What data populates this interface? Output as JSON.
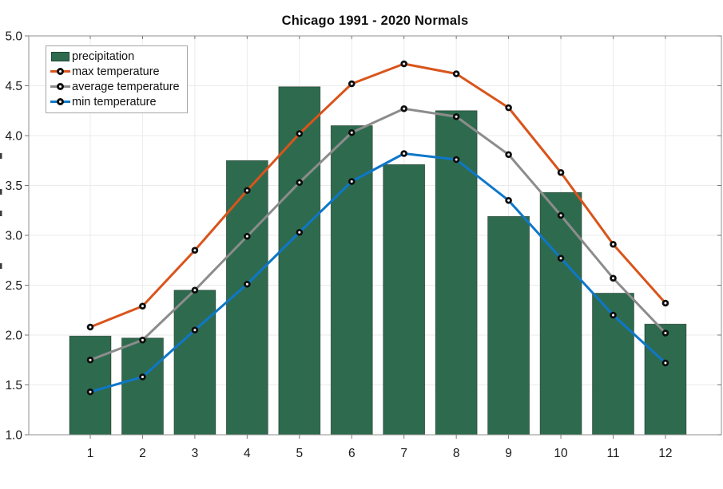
{
  "title": "Chicago 1991 - 2020 Normals",
  "chart_data": {
    "type": "bar+line combo",
    "title": "Chicago 1991 - 2020 Normals",
    "categories": [
      1,
      2,
      3,
      4,
      5,
      6,
      7,
      8,
      9,
      10,
      11,
      12
    ],
    "xtick_labels": [
      "1",
      "2",
      "3",
      "4",
      "5",
      "6",
      "7",
      "8",
      "9",
      "10",
      "11",
      "12"
    ],
    "ytick_labels": [
      "1.0",
      "1.5",
      "2.0",
      "2.5",
      "3.0",
      "3.5",
      "4.0",
      "4.5",
      "5.0"
    ],
    "ylim": [
      1.0,
      5.0
    ],
    "ytick_step": 0.5,
    "xlabel": "",
    "ylabel": "",
    "grid": true,
    "legend_position": "top-left",
    "bar_series": {
      "name": "precipitation",
      "color": "#2e6b4e",
      "values": [
        1.99,
        1.97,
        2.45,
        3.75,
        4.49,
        4.1,
        3.71,
        4.25,
        3.19,
        3.43,
        2.42,
        2.11
      ]
    },
    "line_series": [
      {
        "name": "max temperature",
        "color": "#d9541b",
        "values": [
          2.08,
          2.29,
          2.85,
          3.45,
          4.02,
          4.52,
          4.72,
          4.62,
          4.28,
          3.63,
          2.91,
          2.32
        ]
      },
      {
        "name": "average temperature",
        "color": "#8c8c8c",
        "values": [
          1.75,
          1.95,
          2.45,
          2.99,
          3.53,
          4.03,
          4.27,
          4.19,
          3.81,
          3.2,
          2.57,
          2.02
        ]
      },
      {
        "name": "min temperature",
        "color": "#0e77c8",
        "values": [
          1.43,
          1.58,
          2.05,
          2.51,
          3.03,
          3.54,
          3.82,
          3.76,
          3.35,
          2.77,
          2.2,
          1.72
        ]
      }
    ],
    "marker": {
      "shape": "circle",
      "edge_color": "#0d0d0d",
      "face_color": "#ffffff"
    },
    "style_colors": {
      "grid": "#ebebeb",
      "axis_box": "#8f8f8f",
      "tick": "#7a7a7a",
      "tick_label": "#1a1a1a",
      "background": "#ffffff"
    }
  }
}
